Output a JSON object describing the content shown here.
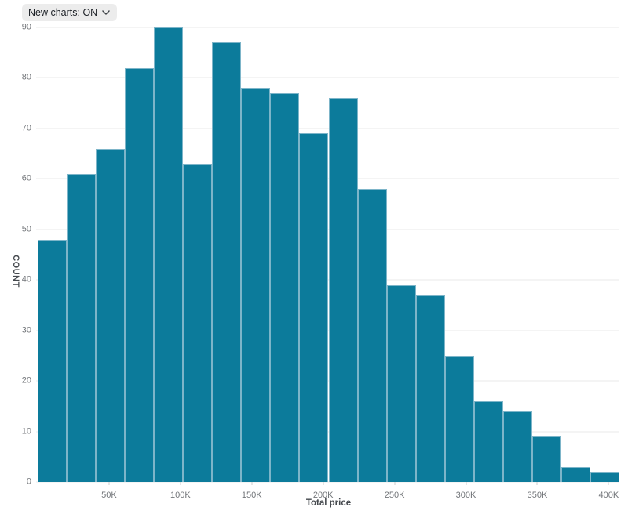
{
  "controls": {
    "new_charts": {
      "label": "New charts: ON"
    }
  },
  "chart_data": {
    "type": "bar",
    "subtype": "histogram",
    "title": "",
    "xlabel": "Total price",
    "ylabel": "COUNT",
    "categories": [
      "0-20K",
      "20-40K",
      "40-60K",
      "60-80K",
      "80-100K",
      "100-120K",
      "120-140K",
      "140-160K",
      "160-180K",
      "180-200K",
      "200-220K",
      "220-240K",
      "240-260K",
      "260-280K",
      "280-300K",
      "300-320K",
      "320-340K",
      "340-360K",
      "360-380K",
      "380-400K"
    ],
    "values": [
      48,
      61,
      66,
      82,
      90,
      63,
      87,
      78,
      77,
      69,
      76,
      58,
      39,
      37,
      25,
      16,
      14,
      9,
      3,
      2
    ],
    "x_ticks": {
      "values": [
        50000,
        100000,
        150000,
        200000,
        250000,
        300000,
        350000,
        400000
      ],
      "labels": [
        "50K",
        "100K",
        "150K",
        "200K",
        "250K",
        "300K",
        "350K",
        "400K"
      ]
    },
    "y_ticks": [
      0,
      10,
      20,
      30,
      40,
      50,
      60,
      70,
      80,
      90
    ],
    "xlim": [
      0,
      407500
    ],
    "ylim": [
      0,
      90
    ],
    "grid": "horizontal",
    "legend": "none",
    "colors": {
      "bar_fill": "#0c7b9b",
      "bar_stroke": "#7db5c9",
      "gridline": "#e9eaea",
      "tick_label": "#73767a",
      "axis_label": "#45494e",
      "chip_bg": "#ececec",
      "chip_text": "#1d2127"
    }
  }
}
